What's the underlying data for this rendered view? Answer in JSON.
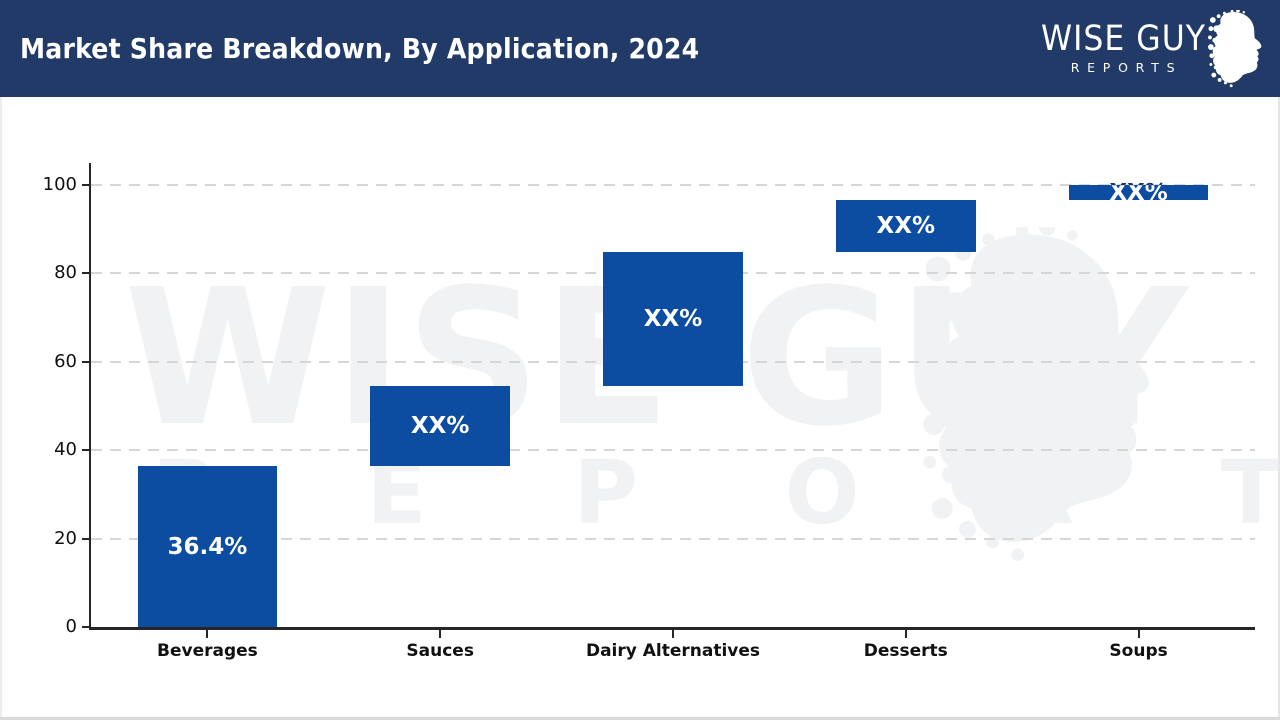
{
  "header": {
    "title": "Market Share Breakdown, By Application, 2024",
    "logo": {
      "wordmark": "WISE GUY",
      "subtext": "REPORTS"
    }
  },
  "watermark": {
    "wordmark": "WISE GUY",
    "subtext": "R E P O R T S"
  },
  "colors": {
    "header_bg": "#213a67",
    "bar_fill": "#0c4da2",
    "grid_line": "#d6d6d6",
    "axis": "#262626",
    "inside_label": "#ffffff",
    "outside_label": "#1b355f",
    "watermark": "#f1f2f4"
  },
  "chart_data": {
    "type": "bar",
    "subtype": "waterfall",
    "title": "Market Share Breakdown, By Application, 2024",
    "categories": [
      "Beverages",
      "Sauces",
      "Dairy Alternatives",
      "Desserts",
      "Soups"
    ],
    "segments": [
      {
        "category": "Beverages",
        "start": 0,
        "end": 36.4,
        "value_label": "36.4%",
        "label_placement": "inside"
      },
      {
        "category": "Sauces",
        "start": 36.4,
        "end": 54.5,
        "value_label": "XX%",
        "label_placement": "inside"
      },
      {
        "category": "Dairy Alternatives",
        "start": 54.5,
        "end": 84.8,
        "value_label": "XX%",
        "label_placement": "inside"
      },
      {
        "category": "Desserts",
        "start": 84.8,
        "end": 96.6,
        "value_label": "XX%",
        "label_placement": "inside"
      },
      {
        "category": "Soups",
        "start": 96.6,
        "end": 100,
        "value_label": "XX%",
        "label_placement": "straddle-top"
      }
    ],
    "xlabel": "",
    "ylabel": "",
    "ylim": [
      0,
      100
    ],
    "yticks": [
      0,
      20,
      40,
      60,
      80,
      100
    ],
    "grid": "horizontal-dashed",
    "legend": null
  }
}
